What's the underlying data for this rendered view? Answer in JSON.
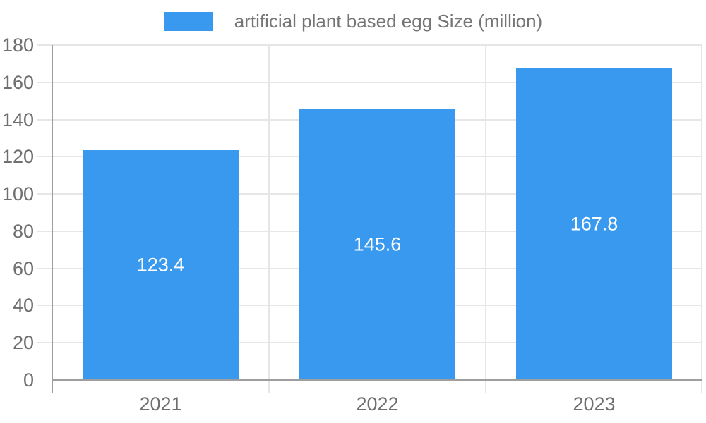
{
  "chart_data": {
    "type": "bar",
    "title": "artificial plant based egg Size (million)",
    "legend_label": "artificial plant based egg Size (million)",
    "legend_position": "top",
    "categories": [
      "2021",
      "2022",
      "2023"
    ],
    "series": [
      {
        "name": "artificial plant based egg Size (million)",
        "values": [
          123.4,
          145.6,
          167.8
        ]
      }
    ],
    "value_labels": [
      "123.4",
      "145.6",
      "167.8"
    ],
    "xlabel": "",
    "ylabel": "",
    "ylim": [
      0,
      180
    ],
    "y_tick_step": 20,
    "y_tick_labels": [
      "0",
      "20",
      "40",
      "60",
      "80",
      "100",
      "120",
      "140",
      "160",
      "180"
    ],
    "grid": true,
    "colors": {
      "bar": "#3899EF",
      "value_label": "#FFFFFF",
      "axis_line": "#9E9E9E",
      "gridline": "#E6E6E6",
      "tick_label": "#6F6F6F",
      "legend_text": "#757575",
      "background": "#FFFFFF"
    }
  }
}
